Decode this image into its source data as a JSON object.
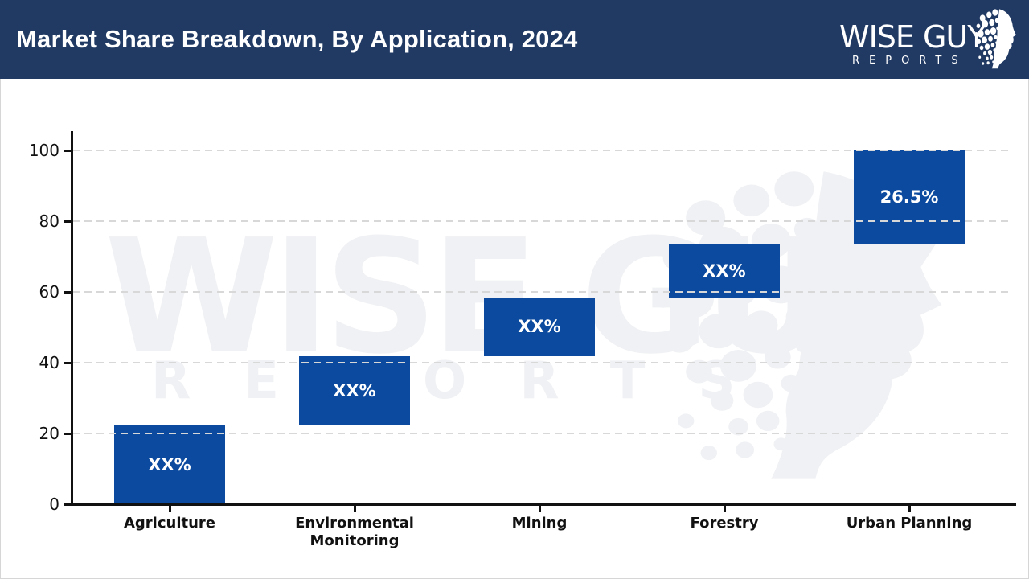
{
  "header": {
    "title": "Market Share Breakdown, By Application, 2024",
    "logo": {
      "primary": "WISE GUY",
      "secondary": "REPORTS"
    }
  },
  "watermark": {
    "primary": "WISE GUY",
    "secondary": "REPORTS"
  },
  "colors": {
    "header_bg": "#213A64",
    "bar": "#0B4A9E",
    "grid": "#D8D8D8",
    "axis": "#111111",
    "watermark": "#F0F1F4",
    "bar_label": "#FFFFFF"
  },
  "chart_data": {
    "type": "bar",
    "variant": "waterfall",
    "title": "Market Share Breakdown, By Application, 2024",
    "categories": [
      "Agriculture",
      "Environmental Monitoring",
      "Mining",
      "Forestry",
      "Urban Planning"
    ],
    "values": [
      22.5,
      19.3,
      16.7,
      15.0,
      26.5
    ],
    "cumulative_start": [
      0,
      22.5,
      41.8,
      58.5,
      73.5
    ],
    "bar_labels": [
      "XX%",
      "XX%",
      "XX%",
      "XX%",
      "26.5%"
    ],
    "xlabel": "",
    "ylabel": "",
    "ylim": [
      0,
      100
    ],
    "yticks": [
      0,
      20,
      40,
      60,
      80,
      100
    ],
    "grid": "horizontal-dashed",
    "legend": "none"
  }
}
